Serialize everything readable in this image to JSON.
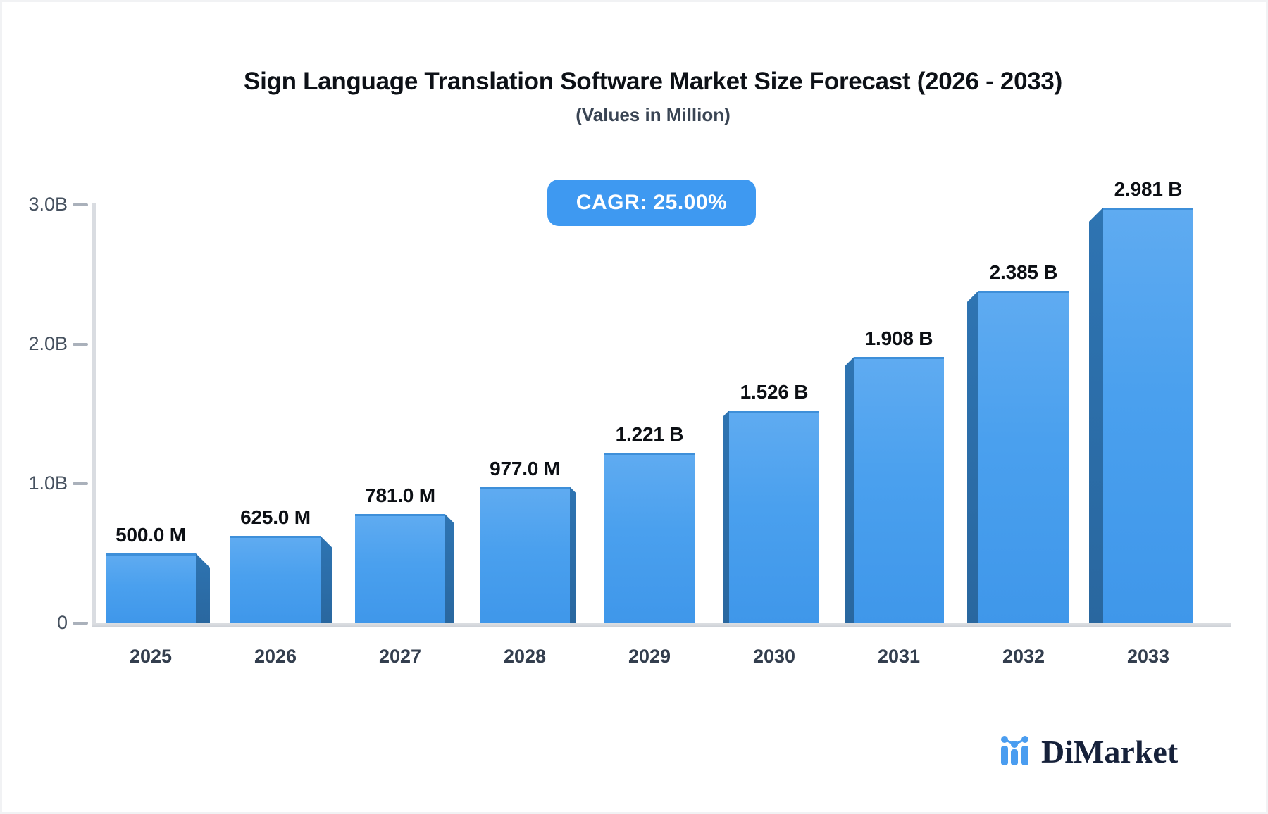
{
  "header": {
    "title": "Sign Language Translation Software Market Size Forecast (2026 - 2033)",
    "subtitle": "(Values in Million)",
    "cagr_badge": "CAGR: 25.00%"
  },
  "chart_data": {
    "type": "bar",
    "title": "Sign Language Translation Software Market Size Forecast (2026 - 2033)",
    "subtitle": "(Values in Million)",
    "annotation": "CAGR: 25.00%",
    "cagr_percent": 25.0,
    "categories": [
      "2025",
      "2026",
      "2027",
      "2028",
      "2029",
      "2030",
      "2031",
      "2032",
      "2033"
    ],
    "values_million": [
      500,
      625,
      781,
      977,
      1221,
      1526,
      1908,
      2385,
      2981
    ],
    "value_labels": [
      "500.0 M",
      "625.0 M",
      "781.0 M",
      "977.0 M",
      "1.221 B",
      "1.526 B",
      "1.908 B",
      "2.385 B",
      "2.981 B"
    ],
    "y_ticks": [
      {
        "label": "3.0B",
        "value_million": 3000
      },
      {
        "label": "2.0B",
        "value_million": 2000
      },
      {
        "label": "1.0B",
        "value_million": 1000
      },
      {
        "label": "0",
        "value_million": 0
      }
    ],
    "ylim_million": [
      0,
      3000
    ],
    "grid": false,
    "legend": "none",
    "bar_color_top": "#5fabf1",
    "bar_color_mid": "#4aa0ee",
    "bar_color_bottom": "#3f97ea",
    "bar_side_color": "#2e74b2",
    "bar_side_color_dark": "#29679f",
    "badge_color": "#3e99f1",
    "axis_color": "#d9dce1"
  },
  "footer": {
    "brand": "DiMarket"
  },
  "icons": {
    "logo": "bar-chart-with-trend-dots-icon",
    "logo_color": "#4a9df0"
  }
}
